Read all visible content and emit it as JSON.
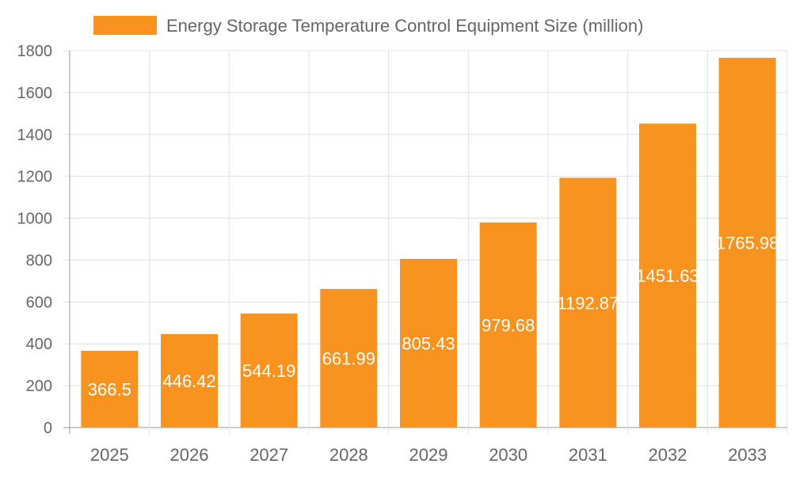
{
  "chart_data": {
    "type": "bar",
    "title": "",
    "xlabel": "",
    "ylabel": "",
    "categories": [
      "2025",
      "2026",
      "2027",
      "2028",
      "2029",
      "2030",
      "2031",
      "2032",
      "2033"
    ],
    "series": [
      {
        "name": "Energy Storage Temperature Control Equipment Size (million)",
        "values": [
          366.5,
          446.42,
          544.19,
          661.99,
          805.43,
          979.68,
          1192.87,
          1451.63,
          1765.98
        ],
        "color": "#f7931e"
      }
    ],
    "ylim": [
      0,
      1800
    ],
    "yticks": [
      0,
      200,
      400,
      600,
      800,
      1000,
      1200,
      1400,
      1600,
      1800
    ],
    "grid": true,
    "legend": "top",
    "data_labels": true,
    "data_label_color": "#ffffff"
  }
}
